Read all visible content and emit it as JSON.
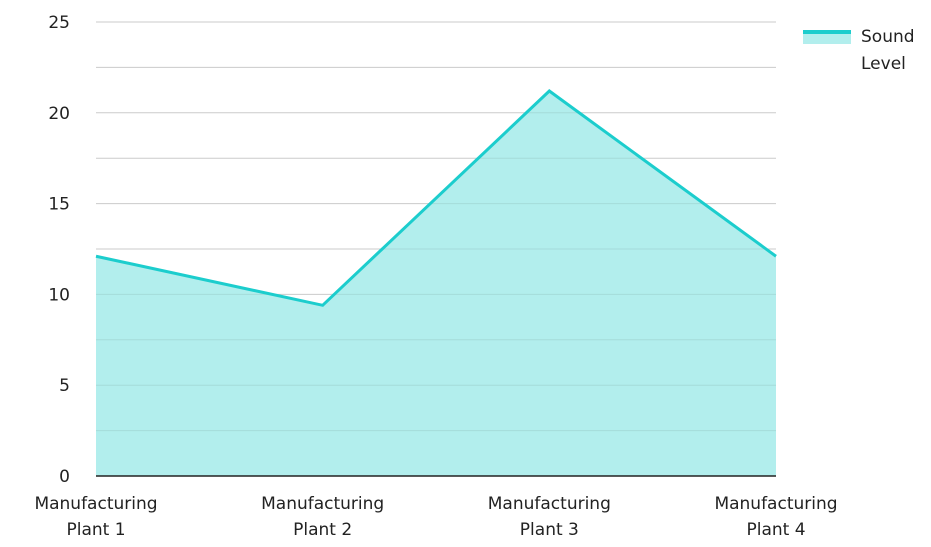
{
  "chart_data": {
    "type": "area",
    "categories": [
      "Manufacturing Plant 1",
      "Manufacturing Plant 2",
      "Manufacturing Plant 3",
      "Manufacturing Plant 4"
    ],
    "category_lines": [
      [
        "Manufacturing",
        "Plant 1"
      ],
      [
        "Manufacturing",
        "Plant 2"
      ],
      [
        "Manufacturing",
        "Plant 3"
      ],
      [
        "Manufacturing",
        "Plant 4"
      ]
    ],
    "series": [
      {
        "name": "Sound Level",
        "values": [
          12.1,
          9.4,
          21.2,
          12.1
        ]
      }
    ],
    "ylim": [
      0,
      25
    ],
    "yticks": [
      0,
      5,
      10,
      15,
      20,
      25
    ],
    "grid": true,
    "legend_position": "top-right",
    "colors": {
      "line": "#1ccdcd",
      "fill": "#b2eeed",
      "grid": "#dddddd",
      "axis": "#222222"
    }
  },
  "legend": {
    "label": "Sound Level"
  }
}
